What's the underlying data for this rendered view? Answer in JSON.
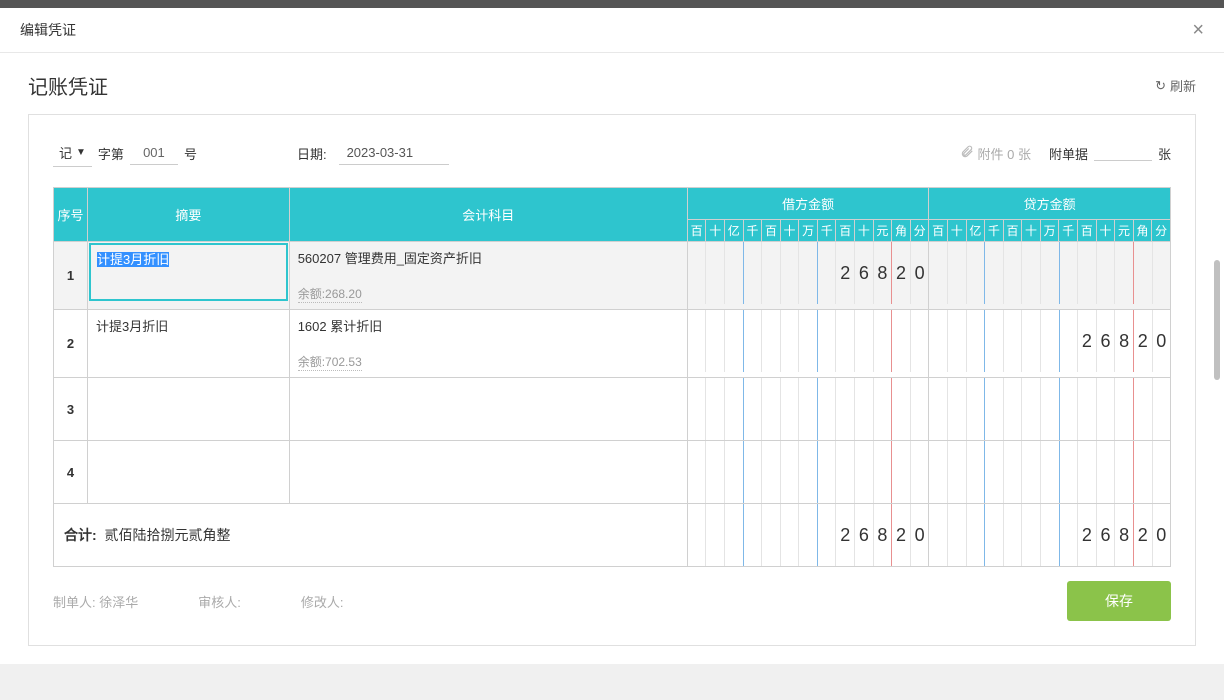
{
  "modal": {
    "title": "编辑凭证",
    "close": "×"
  },
  "section": {
    "title": "记账凭证",
    "refresh": "刷新"
  },
  "form": {
    "voucherType": "记",
    "wordLabel": "字第",
    "number": "001",
    "numberSuffix": "号",
    "dateLabel": "日期:",
    "date": "2023-03-31",
    "attachmentLabel": "附件 0 张",
    "attachCountLabel": "附单据",
    "attachUnit": "张"
  },
  "table": {
    "headers": {
      "seq": "序号",
      "summary": "摘要",
      "subject": "会计科目",
      "debit": "借方金额",
      "credit": "贷方金额"
    },
    "digitHeaders": [
      "百",
      "十",
      "亿",
      "千",
      "百",
      "十",
      "万",
      "千",
      "百",
      "十",
      "元",
      "角",
      "分"
    ],
    "digitBorderPattern": [
      "g",
      "g",
      "b",
      "g",
      "g",
      "g",
      "b",
      "g",
      "g",
      "g",
      "r",
      "g",
      "g"
    ],
    "rows": [
      {
        "seq": "1",
        "summary": "计提3月折旧",
        "subject": "560207 管理费用_固定资产折旧",
        "balance": "余额:268.20",
        "debit": [
          "",
          "",
          "",
          "",
          "",
          "",
          "",
          "",
          "2",
          "6",
          "8",
          "2",
          "0"
        ],
        "credit": [
          "",
          "",
          "",
          "",
          "",
          "",
          "",
          "",
          "",
          "",
          "",
          "",
          ""
        ],
        "active": true,
        "highlight": true
      },
      {
        "seq": "2",
        "summary": "计提3月折旧",
        "subject": "1602 累计折旧",
        "balance": "余额:702.53",
        "debit": [
          "",
          "",
          "",
          "",
          "",
          "",
          "",
          "",
          "",
          "",
          "",
          "",
          ""
        ],
        "credit": [
          "",
          "",
          "",
          "",
          "",
          "",
          "",
          "",
          "2",
          "6",
          "8",
          "2",
          "0"
        ],
        "active": false
      },
      {
        "seq": "3",
        "summary": "",
        "subject": "",
        "balance": "",
        "debit": [
          "",
          "",
          "",
          "",
          "",
          "",
          "",
          "",
          "",
          "",
          "",
          "",
          ""
        ],
        "credit": [
          "",
          "",
          "",
          "",
          "",
          "",
          "",
          "",
          "",
          "",
          "",
          "",
          ""
        ],
        "active": false
      },
      {
        "seq": "4",
        "summary": "",
        "subject": "",
        "balance": "",
        "debit": [
          "",
          "",
          "",
          "",
          "",
          "",
          "",
          "",
          "",
          "",
          "",
          "",
          ""
        ],
        "credit": [
          "",
          "",
          "",
          "",
          "",
          "",
          "",
          "",
          "",
          "",
          "",
          "",
          ""
        ],
        "active": false
      }
    ],
    "total": {
      "label": "合计:",
      "words": "贰佰陆拾捌元贰角整",
      "debit": [
        "",
        "",
        "",
        "",
        "",
        "",
        "",
        "",
        "2",
        "6",
        "8",
        "2",
        "0"
      ],
      "credit": [
        "",
        "",
        "",
        "",
        "",
        "",
        "",
        "",
        "2",
        "6",
        "8",
        "2",
        "0"
      ]
    }
  },
  "footer": {
    "preparer": "制单人: 徐泽华",
    "reviewer": "审核人:",
    "modifier": "修改人:",
    "save": "保存"
  },
  "colors": {
    "header": "#2ec5ce",
    "save": "#8bc34a",
    "blueLine": "#7fb8e8",
    "redLine": "#e89090"
  }
}
